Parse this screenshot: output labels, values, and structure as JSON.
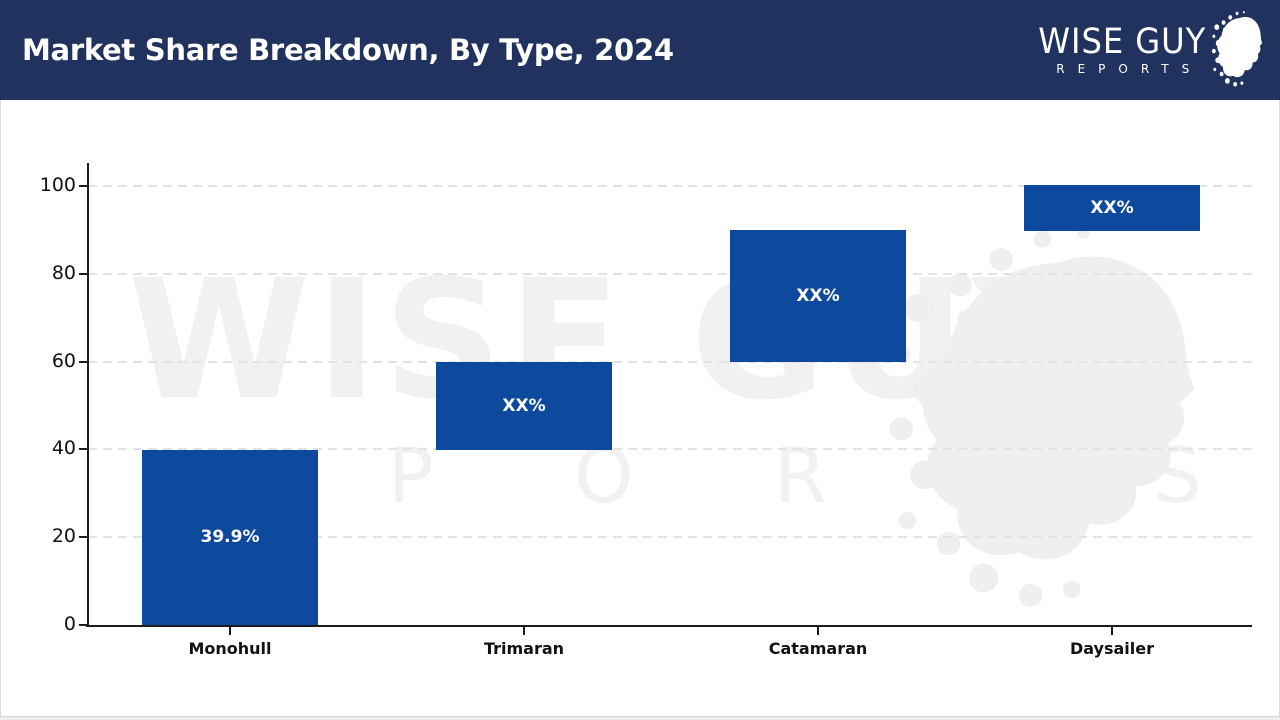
{
  "header": {
    "title": "Market Share Breakdown, By Type, 2024",
    "bg_color": "#21325e",
    "logo": {
      "line1": "WISE GUY",
      "line2": "REPORTS"
    }
  },
  "watermark": {
    "line1": "WISE GUY",
    "line2": "P O R T S"
  },
  "chart_data": {
    "type": "bar",
    "subtype": "waterfall",
    "title": "Market Share Breakdown, By Type, 2024",
    "categories": [
      "Monohull",
      "Trimaran",
      "Catamaran",
      "Daysailer"
    ],
    "segments": [
      {
        "category": "Monohull",
        "start": 0,
        "end": 39.9,
        "label": "39.9%"
      },
      {
        "category": "Trimaran",
        "start": 39.9,
        "end": 60.0,
        "label": "XX%"
      },
      {
        "category": "Catamaran",
        "start": 59.8,
        "end": 89.9,
        "label": "XX%"
      },
      {
        "category": "Daysailer",
        "start": 89.8,
        "end": 100.2,
        "label": "XX%"
      }
    ],
    "xlabel": "",
    "ylabel": "",
    "ylim": [
      0,
      105
    ],
    "yticks": [
      0,
      20,
      40,
      60,
      80,
      100
    ],
    "grid": true,
    "grid_style": "dashed",
    "legend": "none",
    "bar_color": "#0d4a9e",
    "bar_label_color": "#ffffff",
    "axis_color": "#1c1c1c"
  }
}
